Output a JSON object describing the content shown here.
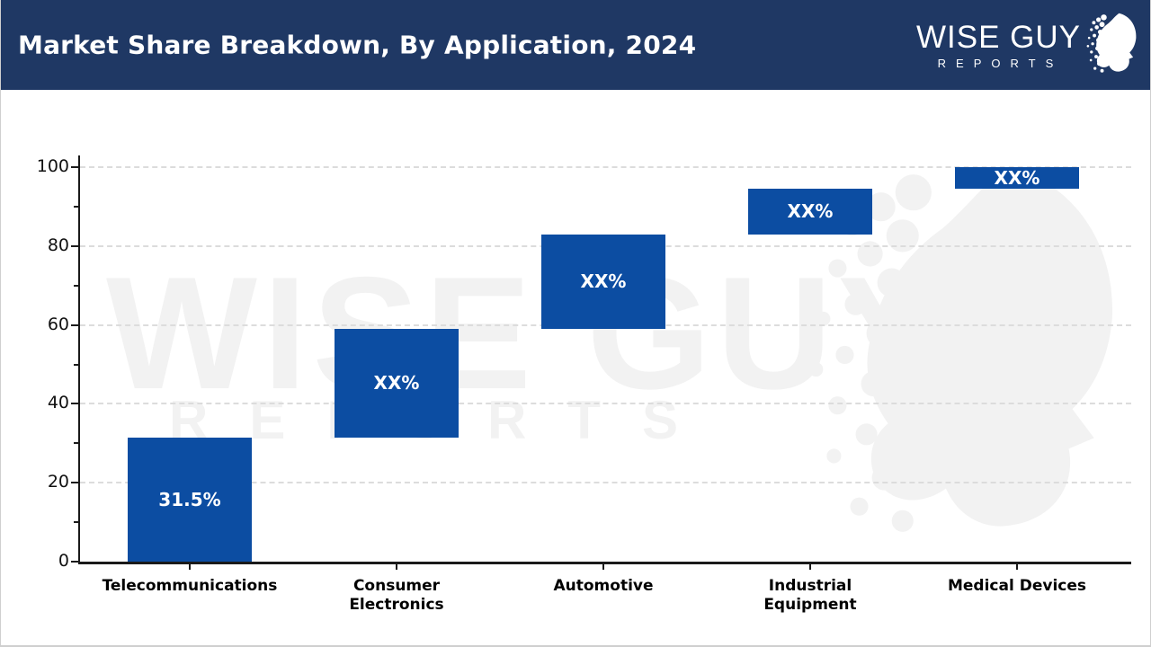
{
  "header": {
    "title": "Market Share Breakdown, By Application, 2024",
    "logo": {
      "line1": "WISE GUY",
      "line2": "REPORTS"
    }
  },
  "watermark": {
    "line1": "WISE GUY",
    "line2": "REPORTS"
  },
  "colors": {
    "header_bg": "#1f3864",
    "bar": "#0c4da2",
    "bar_label": "#ffffff",
    "grid": "#dcdcdc",
    "axis": "#1a1a1a",
    "watermark": "#f2f2f2"
  },
  "chart_data": {
    "type": "bar",
    "subtype": "waterfall-stacked-percentage",
    "title": "Market Share Breakdown, By Application, 2024",
    "categories": [
      "Telecommunications",
      "Consumer Electronics",
      "Automotive",
      "Industrial Equipment",
      "Medical Devices"
    ],
    "tick_labels": [
      "Telecommunications",
      "Consumer\nElectronics",
      "Automotive",
      "Industrial\nEquipment",
      "Medical Devices"
    ],
    "segments": [
      {
        "category": "Telecommunications",
        "start": 0,
        "end": 31.5,
        "value": 31.5,
        "label": "31.5%"
      },
      {
        "category": "Consumer Electronics",
        "start": 31.5,
        "end": 59,
        "value": 27.5,
        "label": "XX%"
      },
      {
        "category": "Automotive",
        "start": 59,
        "end": 83,
        "value": 24,
        "label": "XX%"
      },
      {
        "category": "Industrial Equipment",
        "start": 83,
        "end": 94.5,
        "value": 11.5,
        "label": "XX%"
      },
      {
        "category": "Medical Devices",
        "start": 94.5,
        "end": 100,
        "value": 5.5,
        "label": "XX%"
      }
    ],
    "xlabel": "",
    "ylabel": "",
    "ylim": [
      0,
      100
    ],
    "yticks": [
      0,
      20,
      40,
      60,
      80,
      100
    ],
    "grid": "horizontal-dashed",
    "legend": "none"
  }
}
